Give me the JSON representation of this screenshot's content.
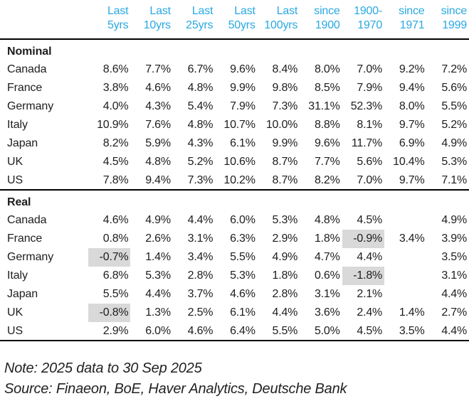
{
  "colors": {
    "accent": "#29a9e1",
    "highlight": "#d9d9d9",
    "text": "#1d1d1d",
    "rule": "#000000"
  },
  "table": {
    "columns": [
      "Last\n5yrs",
      "Last\n10yrs",
      "Last\n25yrs",
      "Last\n50yrs",
      "Last\n100yrs",
      "since\n1900",
      "1900-\n1970",
      "since\n1971",
      "since\n1999"
    ],
    "sections": [
      {
        "label": "Nominal",
        "rows": [
          {
            "country": "Canada",
            "values": [
              "8.6%",
              "7.7%",
              "6.7%",
              "9.6%",
              "8.4%",
              "8.0%",
              "7.0%",
              "9.2%",
              "7.2%"
            ]
          },
          {
            "country": "France",
            "values": [
              "3.8%",
              "4.6%",
              "4.8%",
              "9.9%",
              "9.8%",
              "8.5%",
              "7.9%",
              "9.4%",
              "5.6%"
            ]
          },
          {
            "country": "Germany",
            "values": [
              "4.0%",
              "4.3%",
              "5.4%",
              "7.9%",
              "7.3%",
              "31.1%",
              "52.3%",
              "8.0%",
              "5.5%"
            ]
          },
          {
            "country": "Italy",
            "values": [
              "10.9%",
              "7.6%",
              "4.8%",
              "10.7%",
              "10.0%",
              "8.8%",
              "8.1%",
              "9.7%",
              "5.2%"
            ]
          },
          {
            "country": "Japan",
            "values": [
              "8.2%",
              "5.9%",
              "4.3%",
              "6.1%",
              "9.9%",
              "9.6%",
              "11.7%",
              "6.9%",
              "4.9%"
            ]
          },
          {
            "country": "UK",
            "values": [
              "4.5%",
              "4.8%",
              "5.2%",
              "10.6%",
              "8.7%",
              "7.7%",
              "5.6%",
              "10.4%",
              "5.3%"
            ]
          },
          {
            "country": "US",
            "values": [
              "7.8%",
              "9.4%",
              "7.3%",
              "10.2%",
              "8.7%",
              "8.2%",
              "7.0%",
              "9.7%",
              "7.1%"
            ]
          }
        ]
      },
      {
        "label": "Real",
        "rows": [
          {
            "country": "Canada",
            "values": [
              "4.6%",
              "4.9%",
              "4.4%",
              "6.0%",
              "5.3%",
              "4.8%",
              "4.5%",
              "",
              "4.9%"
            ]
          },
          {
            "country": "France",
            "values": [
              "0.8%",
              "2.6%",
              "3.1%",
              "6.3%",
              "2.9%",
              "1.8%",
              "-0.9%",
              "3.4%",
              "3.9%"
            ]
          },
          {
            "country": "Germany",
            "values": [
              "-0.7%",
              "1.4%",
              "3.4%",
              "5.5%",
              "4.9%",
              "4.7%",
              "4.4%",
              "",
              "3.5%"
            ]
          },
          {
            "country": "Italy",
            "values": [
              "6.8%",
              "5.3%",
              "2.8%",
              "5.3%",
              "1.8%",
              "0.6%",
              "-1.8%",
              "",
              "3.1%"
            ]
          },
          {
            "country": "Japan",
            "values": [
              "5.5%",
              "4.4%",
              "3.7%",
              "4.6%",
              "2.8%",
              "3.1%",
              "2.1%",
              "",
              "4.4%"
            ]
          },
          {
            "country": "UK",
            "values": [
              "-0.8%",
              "1.3%",
              "2.5%",
              "6.1%",
              "4.4%",
              "3.6%",
              "2.4%",
              "1.4%",
              "2.7%"
            ]
          },
          {
            "country": "US",
            "values": [
              "2.9%",
              "6.0%",
              "4.6%",
              "6.4%",
              "5.5%",
              "5.0%",
              "4.5%",
              "3.5%",
              "4.4%"
            ]
          }
        ]
      }
    ]
  },
  "footer": {
    "note": "Note: 2025 data to 30 Sep 2025",
    "source": "Source: Finaeon, BoE, Haver Analytics, Deutsche Bank"
  }
}
